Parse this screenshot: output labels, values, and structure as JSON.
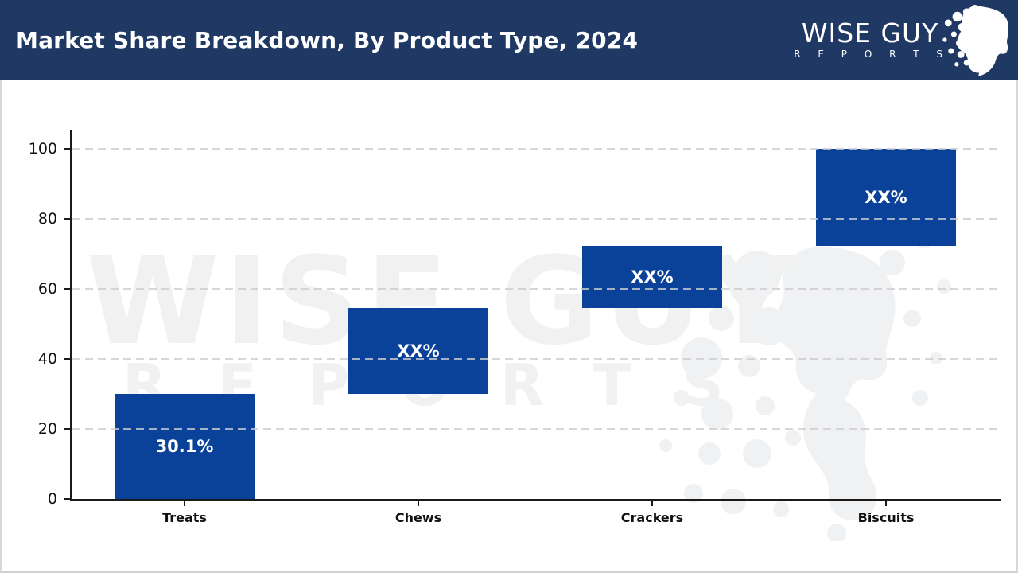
{
  "header": {
    "title": "Market Share Breakdown, By Product Type, 2024",
    "logo": {
      "line1": "WISE GUY",
      "line2": "R E P O R T S"
    }
  },
  "watermark": {
    "line1": "WISE GUY",
    "line2": "REPORTS"
  },
  "colors": {
    "header_bg": "#1F3864",
    "bar": "#0A429A",
    "grid": "#D2D2D2",
    "axis": "#1A1A1A",
    "watermark_gray": "#F1F1F2",
    "bar_label": "#FFFFFF",
    "tick_label": "#111111"
  },
  "chart_data": {
    "type": "bar",
    "variant": "waterfall",
    "title": "Market Share Breakdown, By Product Type, 2024",
    "categories": [
      "Treats",
      "Chews",
      "Crackers",
      "Biscuits"
    ],
    "segments": [
      {
        "category": "Treats",
        "start": 0,
        "end": 30.1,
        "label": "30.1%"
      },
      {
        "category": "Chews",
        "start": 30.1,
        "end": 54.5,
        "label": "XX%"
      },
      {
        "category": "Crackers",
        "start": 54.5,
        "end": 72.3,
        "label": "XX%"
      },
      {
        "category": "Biscuits",
        "start": 72.3,
        "end": 100,
        "label": "XX%"
      }
    ],
    "ylim": [
      0,
      100
    ],
    "yticks": [
      0,
      20,
      40,
      60,
      80,
      100
    ],
    "xlabel": "",
    "ylabel": "",
    "grid": "horizontal-dashed",
    "legend": false
  }
}
